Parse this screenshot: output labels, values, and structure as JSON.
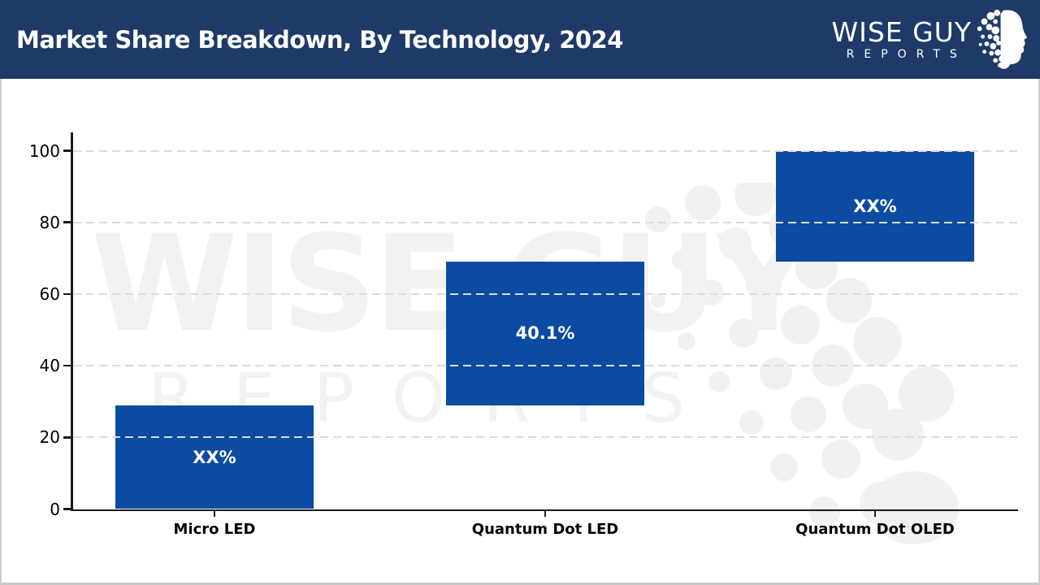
{
  "header": {
    "title": "Market Share Breakdown, By Technology, 2024",
    "logo": {
      "line1": "WISE GUY",
      "line2": "REPORTS"
    }
  },
  "watermark": {
    "line1": "WISE GUY",
    "line2": "REPORTS"
  },
  "colors": {
    "header_bg": "#1f3a68",
    "header_text": "#ffffff",
    "bar": "#0b4ba1",
    "bar_label": "#ffffff",
    "grid": "#dcdcdc",
    "axis": "#1a1a1a",
    "tick_label": "#000000",
    "watermark": "#f2f2f2",
    "frame_border": "#c9c9c9"
  },
  "chart_data": {
    "type": "bar",
    "subtype": "floating-segment (waterfall-style share breakdown, segments stack 0 to 100)",
    "title": "Market Share Breakdown, By Technology, 2024",
    "categories": [
      "Micro LED",
      "Quantum Dot LED",
      "Quantum Dot OLED"
    ],
    "bars": [
      {
        "category": "Micro LED",
        "start": 0,
        "end": 29,
        "value_label": "XX%"
      },
      {
        "category": "Quantum Dot LED",
        "start": 29,
        "end": 69.1,
        "value_label": "40.1%"
      },
      {
        "category": "Quantum Dot OLED",
        "start": 69.1,
        "end": 100,
        "value_label": "XX%"
      }
    ],
    "xlabel": "",
    "ylabel": "",
    "yticks": [
      0,
      20,
      40,
      60,
      80,
      100
    ],
    "ylim": [
      0,
      105
    ],
    "grid": {
      "horizontal": true,
      "style": "dashed",
      "drawn_over_bars": true
    },
    "legend": "none"
  }
}
